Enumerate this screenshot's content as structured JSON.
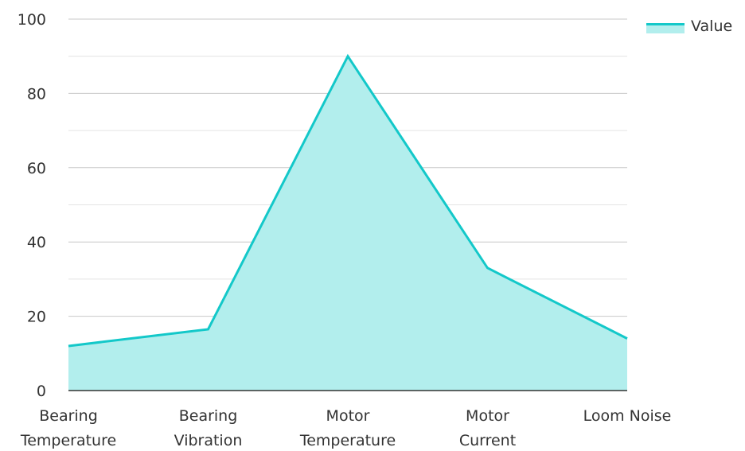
{
  "chart_data": {
    "type": "area",
    "title": "",
    "xlabel": "",
    "ylabel": "",
    "categories": [
      [
        "Bearing",
        "Temperature"
      ],
      [
        "Bearing",
        "Vibration"
      ],
      [
        "Motor",
        "Temperature"
      ],
      [
        "Motor",
        "Current"
      ],
      [
        "Loom Noise"
      ]
    ],
    "series": [
      {
        "name": "Value",
        "values": [
          12,
          16.5,
          90,
          33,
          14
        ]
      }
    ],
    "ylim": [
      0,
      100
    ],
    "yticks": [
      0,
      20,
      40,
      60,
      80,
      100
    ],
    "grid": true,
    "legend_position": "top-right",
    "colors": {
      "line": "#13c8c9",
      "fill": "#b2eeed",
      "grid_major": "#c8c8c8",
      "grid_minor": "#e4e4e4",
      "axis": "#333333"
    }
  },
  "legend": {
    "label": "Value"
  }
}
